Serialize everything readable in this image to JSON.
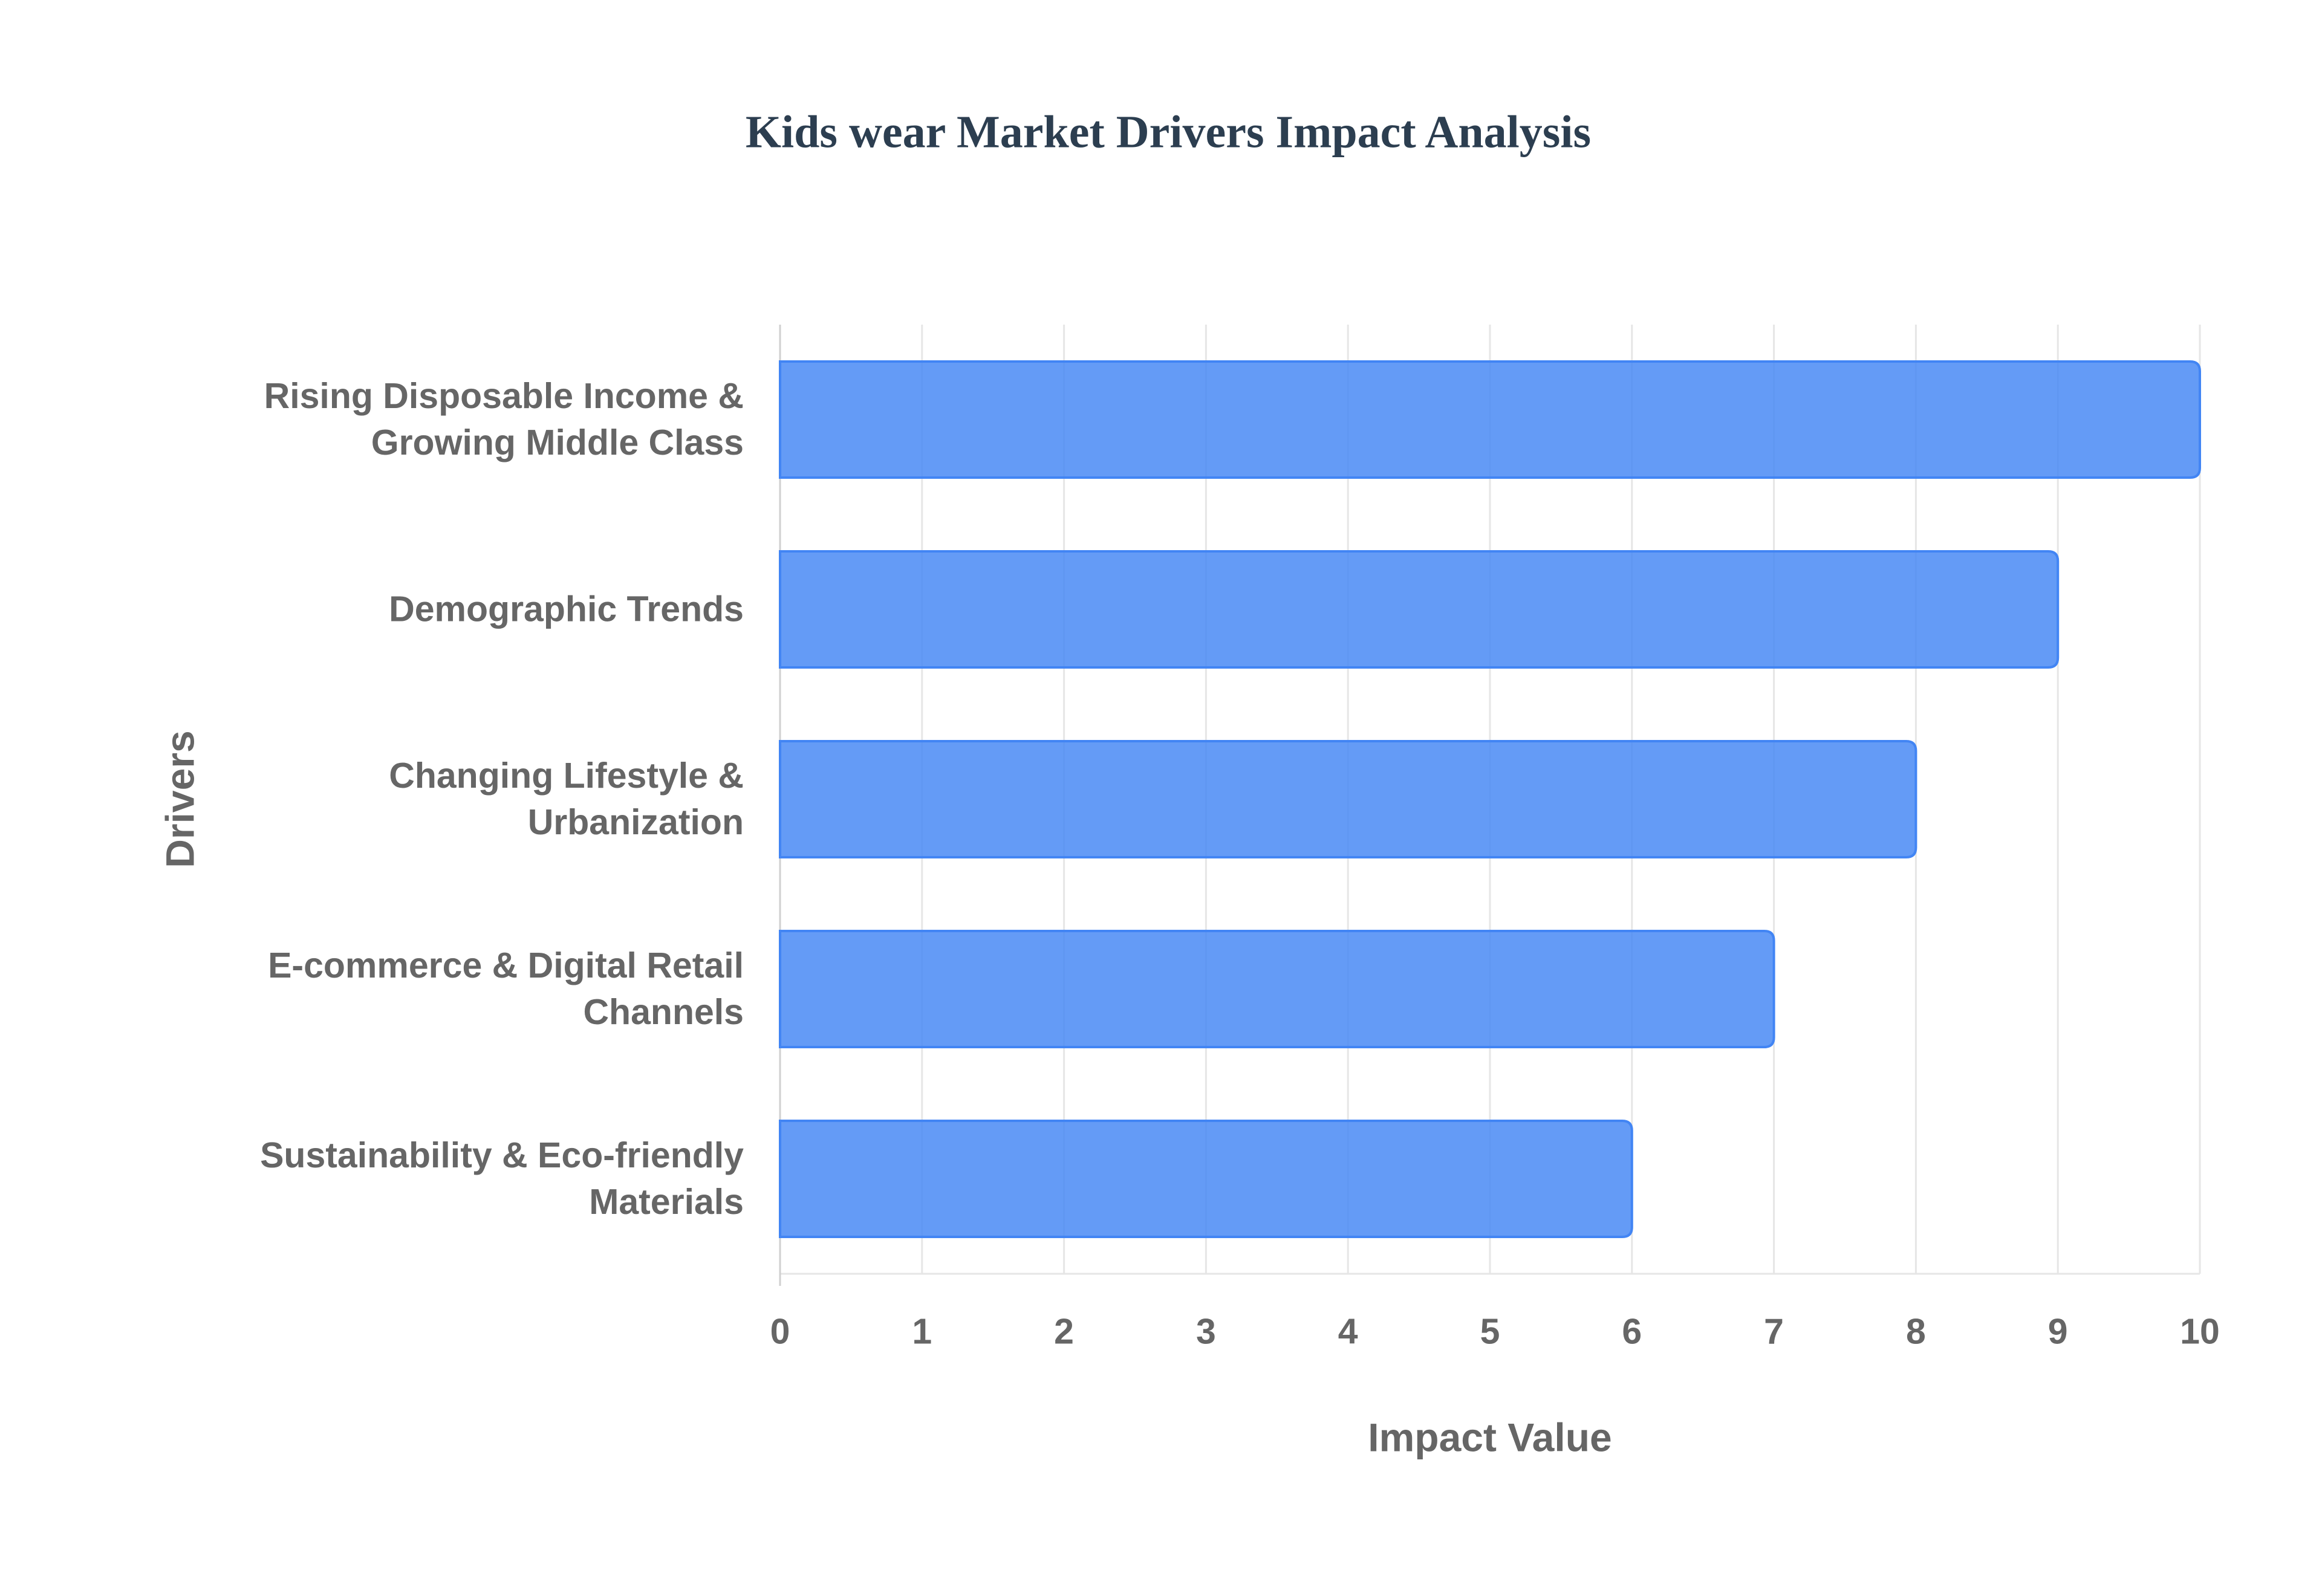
{
  "chart_data": {
    "type": "bar",
    "orientation": "horizontal",
    "title": "Kids wear Market Drivers Impact Analysis",
    "x_label": "Impact Value",
    "y_label": "Drivers",
    "categories": [
      "Rising Disposable Income & Growing Middle Class",
      "Demographic Trends",
      "Changing Lifestyle & Urbanization",
      "E-commerce & Digital Retail Channels",
      "Sustainability & Eco-friendly Materials"
    ],
    "values": [
      10,
      9,
      8,
      7,
      6
    ],
    "color": "#4285f4",
    "xlim": [
      0,
      10
    ],
    "xticks": [
      0,
      1,
      2,
      3,
      4,
      5,
      6,
      7,
      8,
      9,
      10
    ],
    "grid": true
  }
}
